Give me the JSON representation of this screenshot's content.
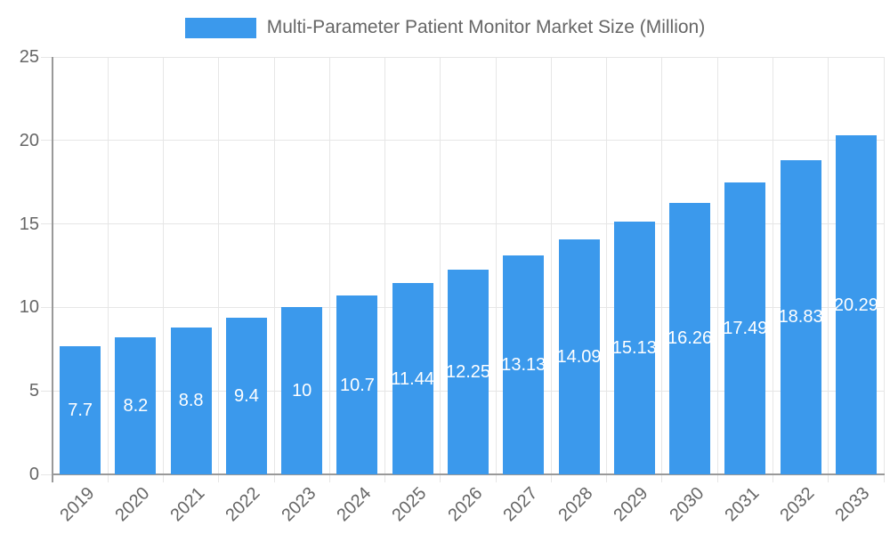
{
  "legend": {
    "label": "Multi-Parameter Patient Monitor Market Size (Million)"
  },
  "chart_data": {
    "type": "bar",
    "title": "Multi-Parameter Patient Monitor Market Size (Million)",
    "categories": [
      "2019",
      "2020",
      "2021",
      "2022",
      "2023",
      "2024",
      "2025",
      "2026",
      "2027",
      "2028",
      "2029",
      "2030",
      "2031",
      "2032",
      "2033"
    ],
    "values": [
      7.7,
      8.2,
      8.8,
      9.4,
      10,
      10.7,
      11.44,
      12.25,
      13.13,
      14.09,
      15.13,
      16.26,
      17.49,
      18.83,
      20.29
    ],
    "bar_labels": [
      "7.7",
      "8.2",
      "8.8",
      "9.4",
      "10",
      "10.7",
      "11.44",
      "12.25",
      "13.13",
      "14.09",
      "15.13",
      "16.26",
      "17.49",
      "18.83",
      "20.29"
    ],
    "xlabel": "",
    "ylabel": "",
    "ylim": [
      0,
      25
    ],
    "ytick_step": 5,
    "ytick_labels": [
      "0",
      "5",
      "10",
      "15",
      "20",
      "25"
    ],
    "grid": true,
    "legend_position": "top",
    "colors": {
      "bar": "#3B99EC",
      "grid": "#E6E6E6",
      "axis": "#999999",
      "tick_text": "#666666",
      "bar_label_text": "#FFFFFF",
      "background": "#FFFFFF"
    }
  }
}
